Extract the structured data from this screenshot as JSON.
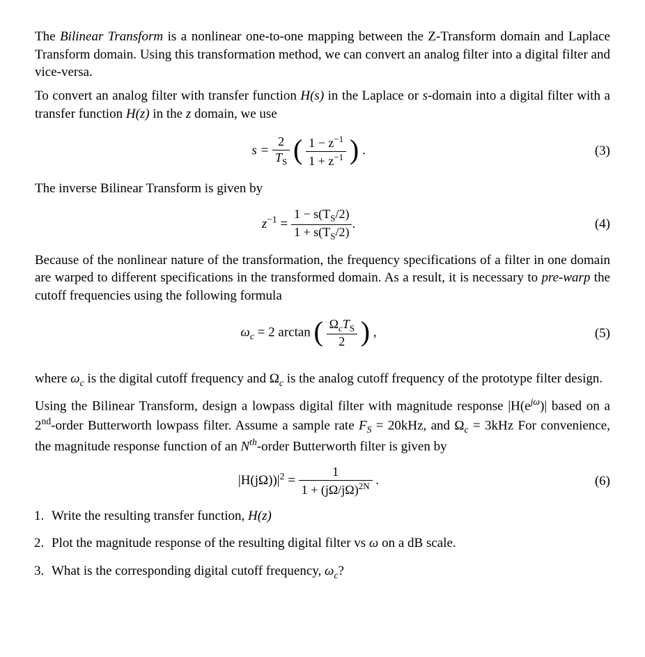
{
  "doc": {
    "p1_a": "The ",
    "p1_b": "Bilinear Transform",
    "p1_c": " is a nonlinear one-to-one mapping between the Z-Transform domain and Laplace Transform domain. Using this transformation method, we can convert an analog filter into a digital filter and vice-versa.",
    "p2_a": "To convert an analog filter with transfer function ",
    "p2_b": " in the Laplace or ",
    "p2_c": "-domain into a digital filter with a transfer function ",
    "p2_d": " in the ",
    "p2_e": " domain, we use",
    "p3": "The inverse Bilinear Transform is given by",
    "p4_a": "Because of the nonlinear nature of the transformation, the frequency specifications of a filter in one domain are warped to different specifications in the transformed domain. As a result, it is necessary to ",
    "p4_b": "pre-warp",
    "p4_c": " the cutoff frequencies using the following formula",
    "p5_a": "where ",
    "p5_b": " is the digital cutoff frequency and ",
    "p5_c": " is the analog cutoff frequency of the prototype filter design.",
    "p6_a": "Using the Bilinear Transform, design a lowpass digital filter with magnitude response ",
    "p6_b": " based on a ",
    "p6_c": "-order Butterworth lowpass filter. Assume a sample rate ",
    "p6_d": ", and ",
    "p6_e": " For convenience, the magnitude response function of an ",
    "p6_f": "-order Butterworth filter is given by",
    "eq3num": "(3)",
    "eq4num": "(4)",
    "eq5num": "(5)",
    "eq6num": "(6)",
    "q1_a": "Write the resulting transfer function, ",
    "q2_a": "Plot the magnitude response of the resulting digital filter vs ",
    "q2_b": " on a dB scale.",
    "q3_a": "What is the corresponding digital cutoff frequency, ",
    "q3_b": "?",
    "math": {
      "Hs": "H(s)",
      "s": "s",
      "Hz": "H(z)",
      "z": "z",
      "Fs_val": "F",
      "Fs_sub": "S",
      "eq_Fs": " = 20kHz",
      "Omega_c": "Ω",
      "c_sub": "c",
      "eq_Oc": " = 3kHz",
      "Nth_a": "N",
      "th": "th",
      "second_a": "2",
      "second_b": "nd",
      "omega": "ω",
      "omega_c": "ω",
      "He_mag_a": "|H(e",
      "He_mag_b": ")|",
      "jomega": "jω"
    },
    "eq3": {
      "lhs": "s = ",
      "frac1_num": "2",
      "frac1_den_a": "T",
      "frac1_den_sub": "S",
      "frac2_num_a": "1 − z",
      "frac2_num_sup": "−1",
      "frac2_den_a": "1 + z",
      "frac2_den_sup": "−1",
      "tail": " ."
    },
    "eq4": {
      "lhs_a": "z",
      "lhs_sup": "−1",
      "lhs_b": " = ",
      "num_a": "1 − s(T",
      "num_sub": "S",
      "num_b": "/2)",
      "den_a": "1 + s(T",
      "den_sub": "S",
      "den_b": "/2)",
      "tail": "."
    },
    "eq5": {
      "lhs_a": "ω",
      "lhs_sub": "c",
      "lhs_b": " = 2 arctan ",
      "num_a": "Ω",
      "num_sub": "c",
      "num_b": "T",
      "num_sub2": "S",
      "den": "2",
      "tail": " ,"
    },
    "eq6": {
      "lhs_a": "|H(jΩ))|",
      "lhs_sup": "2",
      "lhs_b": " = ",
      "num": "1",
      "den_a": "1 + (jΩ/jΩ)",
      "den_sup": "2N",
      "tail": " ."
    }
  }
}
